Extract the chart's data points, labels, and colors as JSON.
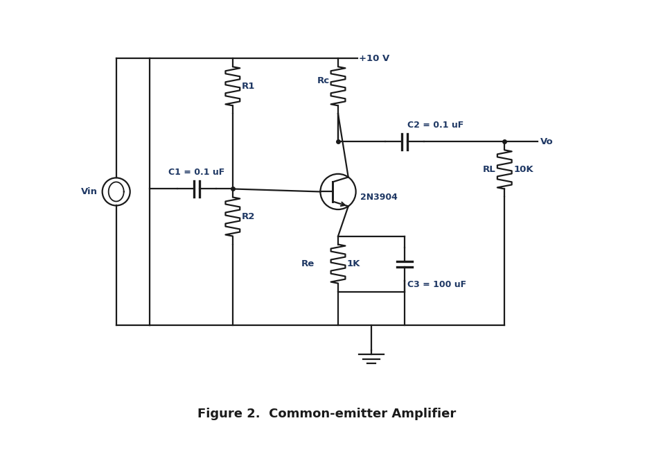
{
  "title": "Figure 2.  Common-emitter Amplifier",
  "title_fontsize": 13,
  "title_fontweight": "bold",
  "line_color": "#1a1a1a",
  "line_width": 1.6,
  "text_color": "#1f3864",
  "label_fontsize": 9.5,
  "background_color": "#ffffff",
  "xlim": [
    0,
    10
  ],
  "ylim": [
    0,
    8
  ],
  "figw": 9.44,
  "figh": 6.49
}
